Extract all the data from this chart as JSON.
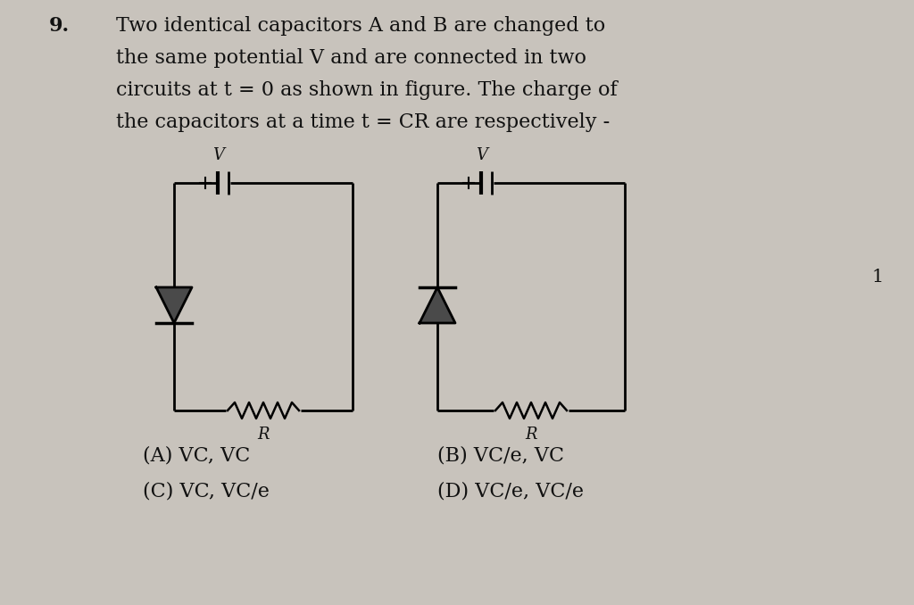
{
  "background_color": "#c8c3bc",
  "text_color": "#111111",
  "question_number": "9.",
  "question_text_line1": "Two identical capacitors A and B are changed to",
  "question_text_line2": "the same potential V and are connected in two",
  "question_text_line3": "circuits at t = 0 as shown in figure. The charge of",
  "question_text_line4": "the capacitors at a time t = CR are respectively -",
  "options": [
    "(A) VC, VC",
    "(C) VC, VC/e",
    "(B) VC/e, VC",
    "(D) VC/e, VC/e"
  ],
  "label_V": "V",
  "label_R": "R",
  "page_num": "1",
  "font_size_question": 16,
  "font_size_options": 16,
  "font_size_label": 13,
  "diode_color": "#4a4a4a"
}
